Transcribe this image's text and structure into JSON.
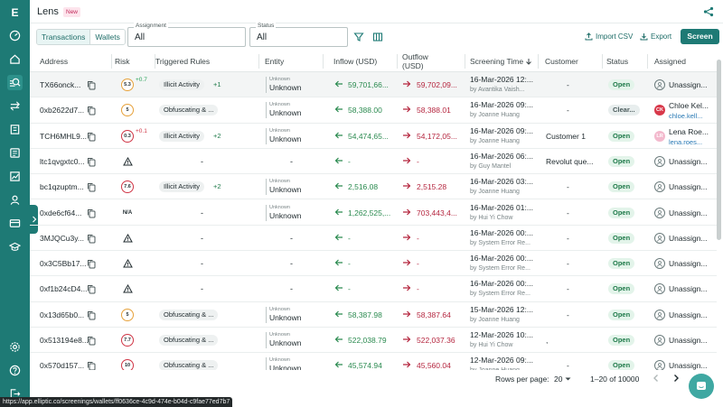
{
  "header": {
    "title": "Lens",
    "badge": "New"
  },
  "toolbar": {
    "seg_transactions": "Transactions",
    "seg_wallets": "Wallets",
    "assignment_label": "Assignment",
    "assignment_value": "All",
    "status_label": "Status",
    "status_value": "All",
    "import_label": "Import CSV",
    "export_label": "Export",
    "screen_label": "Screen"
  },
  "columns": {
    "address": "Address",
    "risk": "Risk",
    "rules": "Triggered Rules",
    "entity": "Entity",
    "inflow": "Inflow (USD)",
    "outflow_1": "Outflow",
    "outflow_2": "(USD)",
    "time": "Screening Time",
    "customer": "Customer",
    "status": "Status",
    "assigned": "Assigned"
  },
  "rows": [
    {
      "address": "TX66onck...",
      "risk": "5.3",
      "risk_delta": "+0.7",
      "rule": "Illicit Activity",
      "rule_more": "+1",
      "entity_label": "Unknown",
      "entity": "Unknown",
      "inflow": "59,701,66...",
      "outflow": "59,702,09...",
      "time": "16-Mar-2026 12:...",
      "by": "by Avantika Vaish...",
      "customer": "-",
      "status": "Open",
      "assignee": "Unassign...",
      "assignee_email": ""
    },
    {
      "address": "0xb2622d7...",
      "risk": "5",
      "risk_delta": "",
      "rule": "Obfuscating & ...",
      "rule_more": "",
      "entity_label": "Unknown",
      "entity": "Unknown",
      "inflow": "58,388.00",
      "outflow": "58,388.01",
      "time": "16-Mar-2026 09:...",
      "by": "by Joanne Huang",
      "customer": "-",
      "status": "Clear...",
      "assignee": "Chloe Kel...",
      "assignee_email": "chloe.kell..."
    },
    {
      "address": "TCH6MHL9...",
      "risk": "0.3",
      "risk_delta": "+0.1",
      "rule": "Illicit Activity",
      "rule_more": "+2",
      "entity_label": "Unknown",
      "entity": "Unknown",
      "inflow": "54,474,65...",
      "outflow": "54,172,05...",
      "time": "16-Mar-2026 09:...",
      "by": "by Joanne Huang",
      "customer": "Customer 1",
      "status": "Open",
      "assignee": "Lena Roe...",
      "assignee_email": "lena.roes..."
    },
    {
      "address": "ltc1qvgxtc0...",
      "risk": "",
      "risk_delta": "",
      "rule": "",
      "rule_more": "",
      "entity_label": "",
      "entity": "",
      "inflow": "-",
      "outflow": "-",
      "time": "16-Mar-2026 06:...",
      "by": "by Guy Mantel",
      "customer": "Revolut que...",
      "status": "Open",
      "assignee": "Unassign...",
      "assignee_email": ""
    },
    {
      "address": "bc1qzuptm...",
      "risk": "7.6",
      "risk_delta": "",
      "rule": "Illicit Activity",
      "rule_more": "+2",
      "entity_label": "Unknown",
      "entity": "Unknown",
      "inflow": "2,516.08",
      "outflow": "2,515.28",
      "time": "16-Mar-2026 03:...",
      "by": "by Joanne Huang",
      "customer": "-",
      "status": "Open",
      "assignee": "Unassign...",
      "assignee_email": ""
    },
    {
      "address": "0xde6cf64...",
      "risk": "N/A",
      "risk_delta": "",
      "rule": "",
      "rule_more": "",
      "entity_label": "Unknown",
      "entity": "Unknown",
      "inflow": "1,262,525,...",
      "outflow": "703,443,4...",
      "time": "16-Mar-2026 01:...",
      "by": "by Hui Yi Chow",
      "customer": "-",
      "status": "Open",
      "assignee": "Unassign...",
      "assignee_email": ""
    },
    {
      "address": "3MJQCu3y...",
      "risk": "",
      "risk_delta": "",
      "rule": "",
      "rule_more": "",
      "entity_label": "",
      "entity": "",
      "inflow": "-",
      "outflow": "-",
      "time": "16-Mar-2026 00:...",
      "by": "by System Error Re...",
      "customer": "-",
      "status": "Open",
      "assignee": "Unassign...",
      "assignee_email": ""
    },
    {
      "address": "0x3C5Bb17...",
      "risk": "",
      "risk_delta": "",
      "rule": "",
      "rule_more": "",
      "entity_label": "",
      "entity": "",
      "inflow": "-",
      "outflow": "-",
      "time": "16-Mar-2026 00:...",
      "by": "by System Error Re...",
      "customer": "-",
      "status": "Open",
      "assignee": "Unassign...",
      "assignee_email": ""
    },
    {
      "address": "0xf1b24cD4...",
      "risk": "",
      "risk_delta": "",
      "rule": "",
      "rule_more": "",
      "entity_label": "",
      "entity": "",
      "inflow": "-",
      "outflow": "-",
      "time": "16-Mar-2026 00:...",
      "by": "by System Error Re...",
      "customer": "-",
      "status": "Open",
      "assignee": "Unassign...",
      "assignee_email": ""
    },
    {
      "address": "0x13d65b0...",
      "risk": "5",
      "risk_delta": "",
      "rule": "Obfuscating & ...",
      "rule_more": "",
      "entity_label": "Unknown",
      "entity": "Unknown",
      "inflow": "58,387.98",
      "outflow": "58,387.64",
      "time": "15-Mar-2026 12:...",
      "by": "by Joanne Huang",
      "customer": "-",
      "status": "Open",
      "assignee": "Unassign...",
      "assignee_email": ""
    },
    {
      "address": "0x513194e8...",
      "risk": "7.7",
      "risk_delta": "",
      "rule": "Obfuscating & ...",
      "rule_more": "",
      "entity_label": "Unknown",
      "entity": "Unknown",
      "inflow": "522,038.79",
      "outflow": "522,037.36",
      "time": "12-Mar-2026 10:...",
      "by": "by Hui Yi Chow",
      "customer": ",",
      "status": "Open",
      "assignee": "Unassign...",
      "assignee_email": ""
    },
    {
      "address": "0x570d157...",
      "risk": "10",
      "risk_delta": "",
      "rule": "Obfuscating & ...",
      "rule_more": "",
      "entity_label": "Unknown",
      "entity": "Unknown",
      "inflow": "45,574.94",
      "outflow": "45,560.04",
      "time": "12-Mar-2026 09:...",
      "by": "by Joanne Huang",
      "customer": "-",
      "status": "Open",
      "assignee": "Unassign...",
      "assignee_email": ""
    }
  ],
  "pagination": {
    "rows_label": "Rows per page:",
    "rows_value": "20",
    "range": "1–20 of 10000"
  },
  "url": "https://app.elliptic.co/screenings/wallets/ff0636ce-4c9d-474e-b04d-c9fae77ed7b7",
  "colors": {
    "brand": "#1e7a75",
    "inflow": "#2a8a4f",
    "outflow": "#b5263f",
    "open": "#1f7a4a"
  }
}
